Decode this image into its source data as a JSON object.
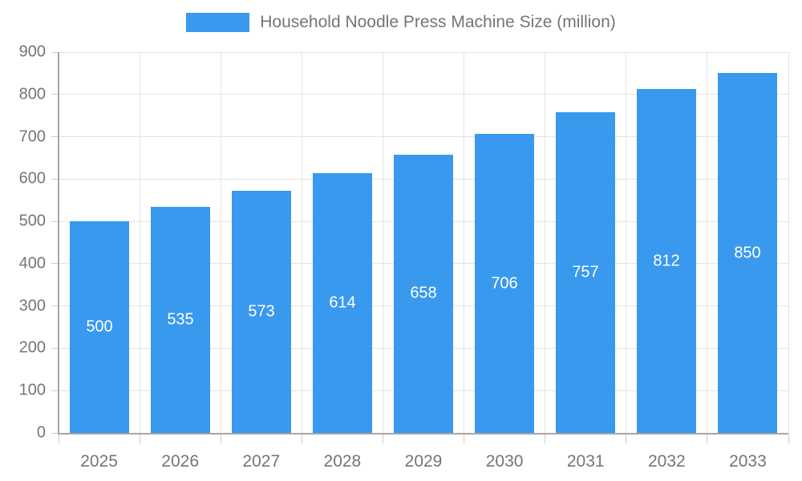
{
  "legend": {
    "label": "Household Noodle Press Machine Size (million)",
    "swatch_color": "#3999ee"
  },
  "chart_data": {
    "type": "bar",
    "title": "Household Noodle Press Machine Size (million)",
    "categories": [
      "2025",
      "2026",
      "2027",
      "2028",
      "2029",
      "2030",
      "2031",
      "2032",
      "2033"
    ],
    "values": [
      500,
      535,
      573,
      614,
      658,
      706,
      757,
      812,
      850
    ],
    "xlabel": "",
    "ylabel": "",
    "ylim": [
      0,
      900
    ],
    "y_ticks": [
      0,
      100,
      200,
      300,
      400,
      500,
      600,
      700,
      800,
      900
    ],
    "grid": true,
    "legend_position": "top",
    "colors": {
      "bar": "#3999ee",
      "value_label": "#ffffff",
      "axis_text": "#757575",
      "grid_line": "#e3e3e3",
      "axis_line": "#a6a6a6",
      "tick_mark": "#cccccc"
    }
  }
}
